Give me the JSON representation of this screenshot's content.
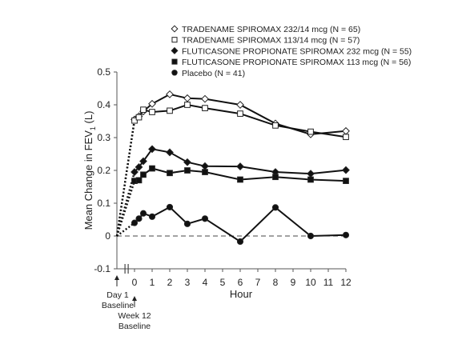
{
  "chart_data": {
    "type": "line",
    "ylabel_parts": {
      "main": "Mean Change in FEV",
      "sub": "1",
      "tail": " (L)"
    },
    "xlabel": "Hour",
    "ylim": [
      -0.1,
      0.5
    ],
    "yticks": [
      -0.1,
      0,
      0.1,
      0.2,
      0.3,
      0.4,
      0.5
    ],
    "ytick_labels": [
      "-0.1",
      "0",
      "0.1",
      "0.2",
      "0.3",
      "0.4",
      "0.5"
    ],
    "xticks": [
      0,
      1,
      2,
      3,
      4,
      5,
      6,
      7,
      8,
      9,
      10,
      11,
      12
    ],
    "xtick_labels": [
      "0",
      "1",
      "2",
      "3",
      "4",
      "5",
      "6",
      "7",
      "8",
      "9",
      "10",
      "11",
      "12"
    ],
    "x_domain": [
      -1,
      12
    ],
    "baseline_x": -1,
    "reference_line": 0,
    "axis_break": true,
    "annotations": [
      {
        "lines": [
          "Day 1",
          "Baseline"
        ],
        "x": -1
      },
      {
        "lines": [
          "Week 12",
          "Baseline"
        ],
        "x": 0
      }
    ],
    "legend_position": "top-right",
    "series": [
      {
        "name": "TRADENAME SPIROMAX 232/14 mcg (N = 65)",
        "marker": "diamond-open",
        "x": [
          0,
          0.25,
          0.5,
          1,
          2,
          3,
          4,
          6,
          8,
          10,
          12
        ],
        "values": [
          0.355,
          0.365,
          0.38,
          0.403,
          0.432,
          0.42,
          0.418,
          0.4,
          0.343,
          0.31,
          0.32
        ]
      },
      {
        "name": "TRADENAME SPIROMAX 113/14 mcg (N = 57)",
        "marker": "square-open",
        "x": [
          0,
          0.25,
          0.5,
          1,
          2,
          3,
          4,
          6,
          8,
          10,
          12
        ],
        "values": [
          0.352,
          0.362,
          0.385,
          0.378,
          0.382,
          0.4,
          0.39,
          0.373,
          0.337,
          0.318,
          0.302
        ]
      },
      {
        "name": "FLUTICASONE PROPIONATE SPIROMAX 232 mcg (N = 55)",
        "marker": "diamond-filled",
        "x": [
          0,
          0.25,
          0.5,
          1,
          2,
          3,
          4,
          6,
          8,
          10,
          12
        ],
        "values": [
          0.195,
          0.21,
          0.228,
          0.265,
          0.255,
          0.225,
          0.213,
          0.212,
          0.195,
          0.19,
          0.201
        ]
      },
      {
        "name": "FLUTICASONE PROPIONATE SPIROMAX 113 mcg (N = 56)",
        "marker": "square-filled",
        "x": [
          0,
          0.25,
          0.5,
          1,
          2,
          3,
          4,
          6,
          8,
          10,
          12
        ],
        "values": [
          0.168,
          0.17,
          0.187,
          0.206,
          0.192,
          0.2,
          0.195,
          0.172,
          0.18,
          0.172,
          0.168
        ]
      },
      {
        "name": "Placebo (N = 41)",
        "marker": "circle-filled",
        "x": [
          0,
          0.25,
          0.5,
          1,
          2,
          3,
          4,
          6,
          8,
          10,
          12
        ],
        "values": [
          0.04,
          0.053,
          0.069,
          0.059,
          0.088,
          0.037,
          0.053,
          -0.017,
          0.087,
          0.0,
          0.003
        ]
      }
    ]
  }
}
